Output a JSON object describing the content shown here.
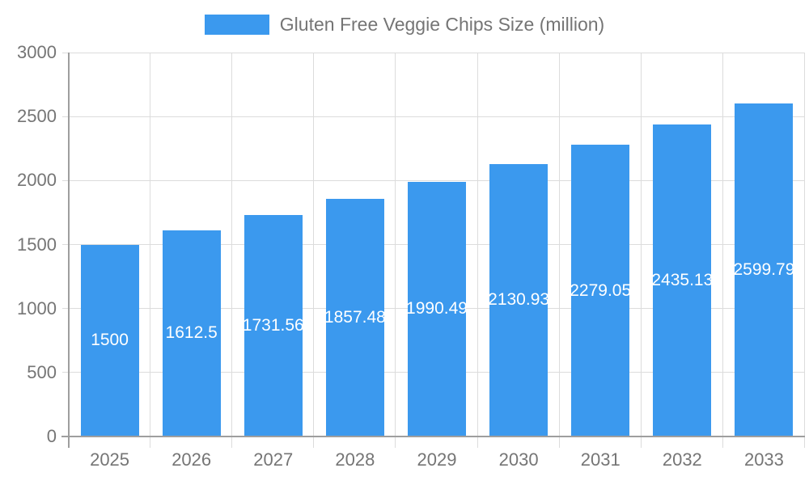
{
  "legend": {
    "label": "Gluten Free Veggie Chips Size (million)",
    "position": "top"
  },
  "colors": {
    "bar": "#3b99ee",
    "axis_line": "#9e9e9e",
    "gridline": "#dcdcdc",
    "tick_text": "#757575",
    "value_label_text": "#ffffff",
    "background": "#ffffff"
  },
  "chart_data": {
    "type": "bar",
    "title": "Gluten Free Veggie Chips Size (million)",
    "categories": [
      "2025",
      "2026",
      "2027",
      "2028",
      "2029",
      "2030",
      "2031",
      "2032",
      "2033"
    ],
    "series": [
      {
        "name": "Gluten Free Veggie Chips Size (million)",
        "values": [
          1500,
          1612.5,
          1731.56,
          1857.48,
          1990.49,
          2130.93,
          2279.05,
          2435.13,
          2599.79
        ]
      }
    ],
    "value_labels": [
      "1500",
      "1612.5",
      "1731.56",
      "1857.48",
      "1990.49",
      "2130.93",
      "2279.05",
      "2435.13",
      "2599.79"
    ],
    "xlabel": "",
    "ylabel": "",
    "ylim": [
      0,
      3000
    ],
    "yticks": [
      0,
      500,
      1000,
      1500,
      2000,
      2500,
      3000
    ],
    "grid": true,
    "legend_position": "top"
  }
}
